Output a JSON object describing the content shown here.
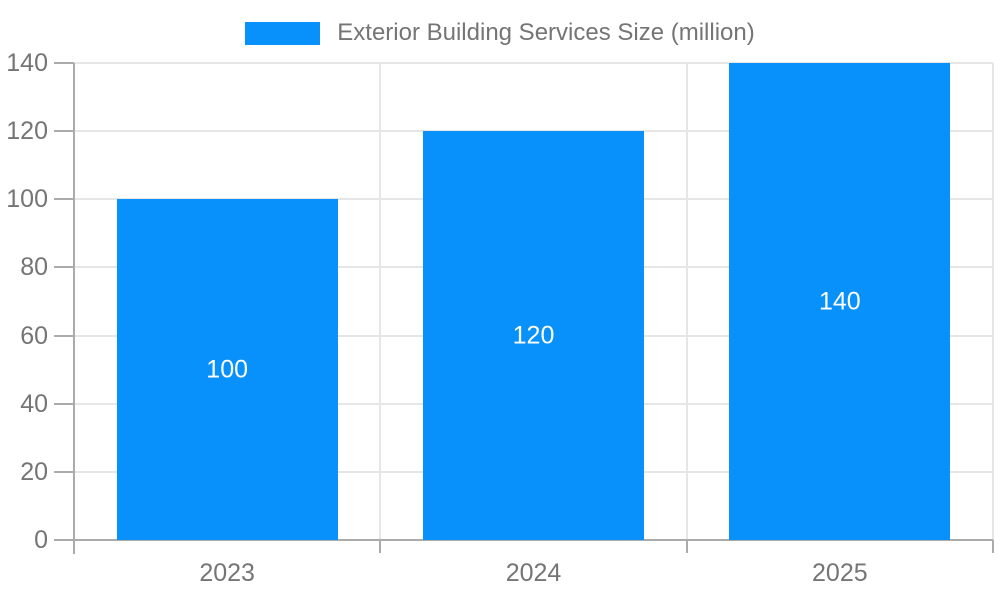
{
  "chart_data": {
    "type": "bar",
    "title": "Exterior Building Services Size (million)",
    "categories": [
      "2023",
      "2024",
      "2025"
    ],
    "values": [
      100,
      120,
      140
    ],
    "yticks": [
      0,
      20,
      40,
      60,
      80,
      100,
      120,
      140
    ],
    "ylim": [
      0,
      140
    ],
    "xlabel": "",
    "ylabel": "",
    "grid": true,
    "legend_position": "top-center",
    "bar_color": "#0891fa",
    "bar_label_color": "#ffffff",
    "axis_text_color": "#757575",
    "axis_line_color": "#ababab",
    "gridline_color": "#e6e6e6",
    "background_color": "#ffffff"
  }
}
